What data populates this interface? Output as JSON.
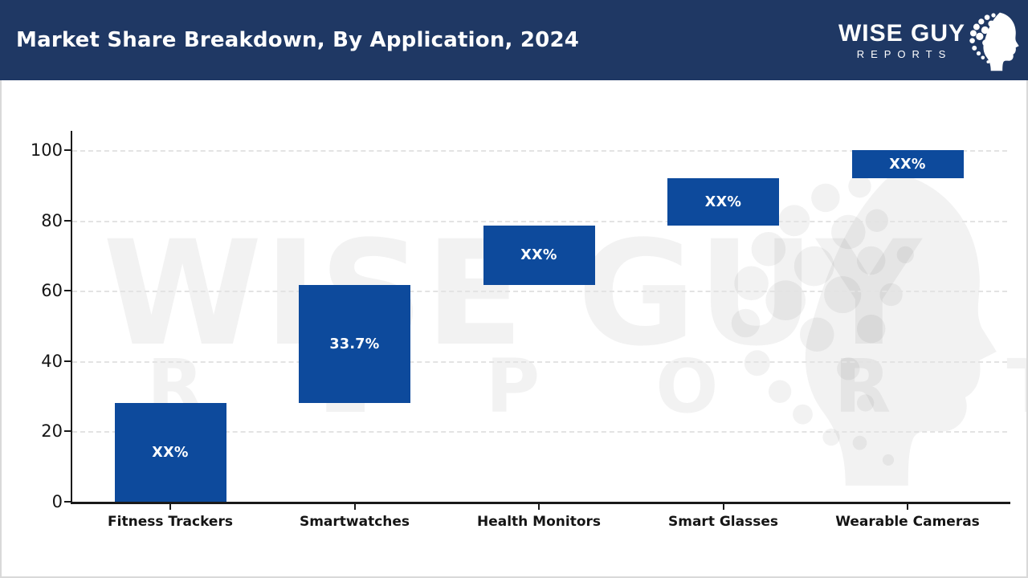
{
  "header": {
    "title": "Market Share Breakdown, By Application, 2024",
    "bg_color": "#1f3864",
    "logo": {
      "line1": "WISE GUY",
      "line2": "REPORTS"
    }
  },
  "watermark": {
    "line1": "WISE GUY",
    "line2": "R E P O R T S"
  },
  "chart_data": {
    "type": "bar",
    "subtype": "waterfall",
    "title": "Market Share Breakdown, By Application, 2024",
    "categories": [
      "Fitness Trackers",
      "Smartwatches",
      "Health Monitors",
      "Smart Glasses",
      "Wearable Cameras"
    ],
    "segments": [
      {
        "category": "Fitness Trackers",
        "start": 0,
        "end": 28,
        "value": 28,
        "label": "XX%"
      },
      {
        "category": "Smartwatches",
        "start": 28,
        "end": 61.7,
        "value": 33.7,
        "label": "33.7%"
      },
      {
        "category": "Health Monitors",
        "start": 61.7,
        "end": 78.5,
        "value": 16.8,
        "label": "XX%"
      },
      {
        "category": "Smart Glasses",
        "start": 78.5,
        "end": 92,
        "value": 13.5,
        "label": "XX%"
      },
      {
        "category": "Wearable Cameras",
        "start": 92,
        "end": 100,
        "value": 8,
        "label": "XX%"
      }
    ],
    "yticks": [
      0,
      20,
      40,
      60,
      80,
      100
    ],
    "ylim": [
      0,
      105
    ],
    "xlabel": "",
    "ylabel": "",
    "grid": "horizontal-dashed",
    "legend": "none",
    "bar_color": "#0d4a9c",
    "bar_label_color": "#ffffff"
  }
}
